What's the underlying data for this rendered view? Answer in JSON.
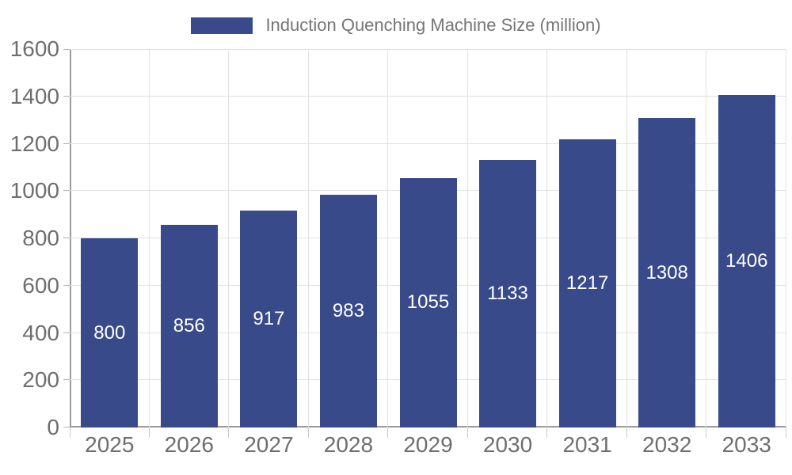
{
  "legend": {
    "label": "Induction Quenching Machine Size (million)"
  },
  "colors": {
    "bar": "#394A8A",
    "axis_line": "#9A9A9A",
    "grid_line": "#E2E2E2",
    "axis_text": "#6E6E6E",
    "legend_text": "#757575",
    "value_text": "#FFFFFF",
    "background": "#FFFFFF"
  },
  "chart_data": {
    "type": "bar",
    "title": "Induction Quenching Machine Size (million)",
    "categories": [
      "2025",
      "2026",
      "2027",
      "2028",
      "2029",
      "2030",
      "2031",
      "2032",
      "2033"
    ],
    "values": [
      800,
      856,
      917,
      983,
      1055,
      1133,
      1217,
      1308,
      1406
    ],
    "series_name": "Induction Quenching Machine Size (million)",
    "xlabel": "",
    "ylabel": "",
    "ylim": [
      0,
      1600
    ],
    "ytick_step": 200,
    "grid": "on",
    "legend_position": "top-center",
    "value_label_position": "inside-center"
  }
}
